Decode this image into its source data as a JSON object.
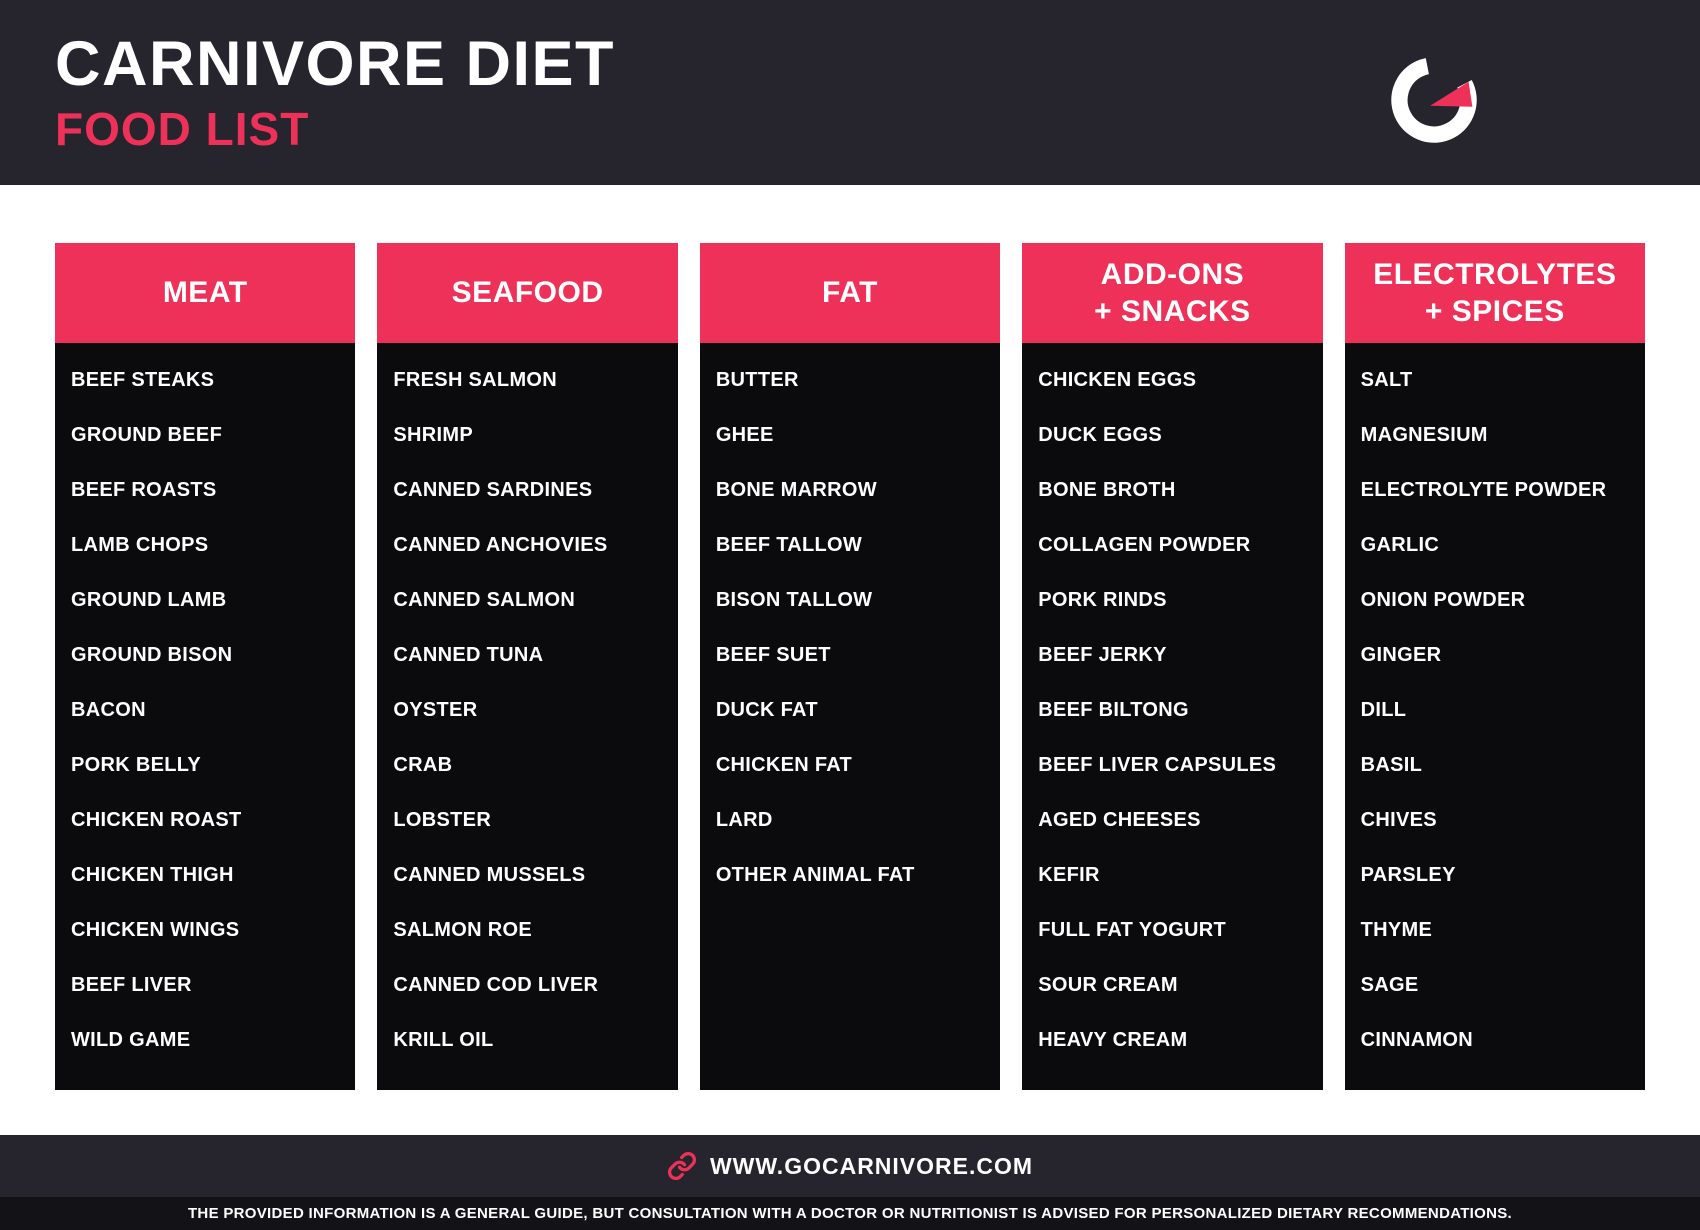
{
  "header": {
    "title": "CARNIVORE DIET",
    "subtitle": "FOOD LIST",
    "logo": "gocarnivore-g-logo"
  },
  "colors": {
    "accent_pink": "#ee3158",
    "banner_dark": "#26252e",
    "column_black": "#0b0b0d",
    "disclaimer_dark": "#121217",
    "text_white": "#ffffff"
  },
  "columns": [
    {
      "title": "MEAT",
      "items": [
        "BEEF STEAKS",
        "GROUND BEEF",
        "BEEF ROASTS",
        "LAMB CHOPS",
        "GROUND LAMB",
        "GROUND BISON",
        "BACON",
        "PORK BELLY",
        "CHICKEN ROAST",
        "CHICKEN THIGH",
        "CHICKEN WINGS",
        "BEEF LIVER",
        "WILD GAME"
      ]
    },
    {
      "title": "SEAFOOD",
      "items": [
        "FRESH SALMON",
        "SHRIMP",
        "CANNED SARDINES",
        "CANNED ANCHOVIES",
        "CANNED SALMON",
        "CANNED TUNA",
        "OYSTER",
        "CRAB",
        "LOBSTER",
        "CANNED MUSSELS",
        "SALMON ROE",
        "CANNED COD LIVER",
        "KRILL OIL"
      ]
    },
    {
      "title": "FAT",
      "items": [
        "BUTTER",
        "GHEE",
        "BONE MARROW",
        "BEEF TALLOW",
        "BISON TALLOW",
        "BEEF SUET",
        "DUCK FAT",
        "CHICKEN FAT",
        "LARD",
        "OTHER ANIMAL FAT"
      ]
    },
    {
      "title": "ADD-ONS\n+ SNACKS",
      "items": [
        "CHICKEN EGGS",
        "DUCK EGGS",
        "BONE BROTH",
        "COLLAGEN POWDER",
        "PORK RINDS",
        "BEEF JERKY",
        "BEEF BILTONG",
        "BEEF LIVER CAPSULES",
        "AGED CHEESES",
        "KEFIR",
        "FULL FAT YOGURT",
        "SOUR CREAM",
        "HEAVY CREAM"
      ]
    },
    {
      "title": "ELECTROLYTES\n+ SPICES",
      "items": [
        "SALT",
        "MAGNESIUM",
        "ELECTROLYTE POWDER",
        "GARLIC",
        "ONION POWDER",
        "GINGER",
        "DILL",
        "BASIL",
        "CHIVES",
        "PARSLEY",
        "THYME",
        "SAGE",
        "CINNAMON"
      ]
    }
  ],
  "footer": {
    "website": "WWW.GOCARNIVORE.COM",
    "disclaimer": "THE PROVIDED INFORMATION IS A GENERAL GUIDE, BUT CONSULTATION WITH A DOCTOR OR NUTRITIONIST IS ADVISED FOR PERSONALIZED DIETARY RECOMMENDATIONS."
  }
}
